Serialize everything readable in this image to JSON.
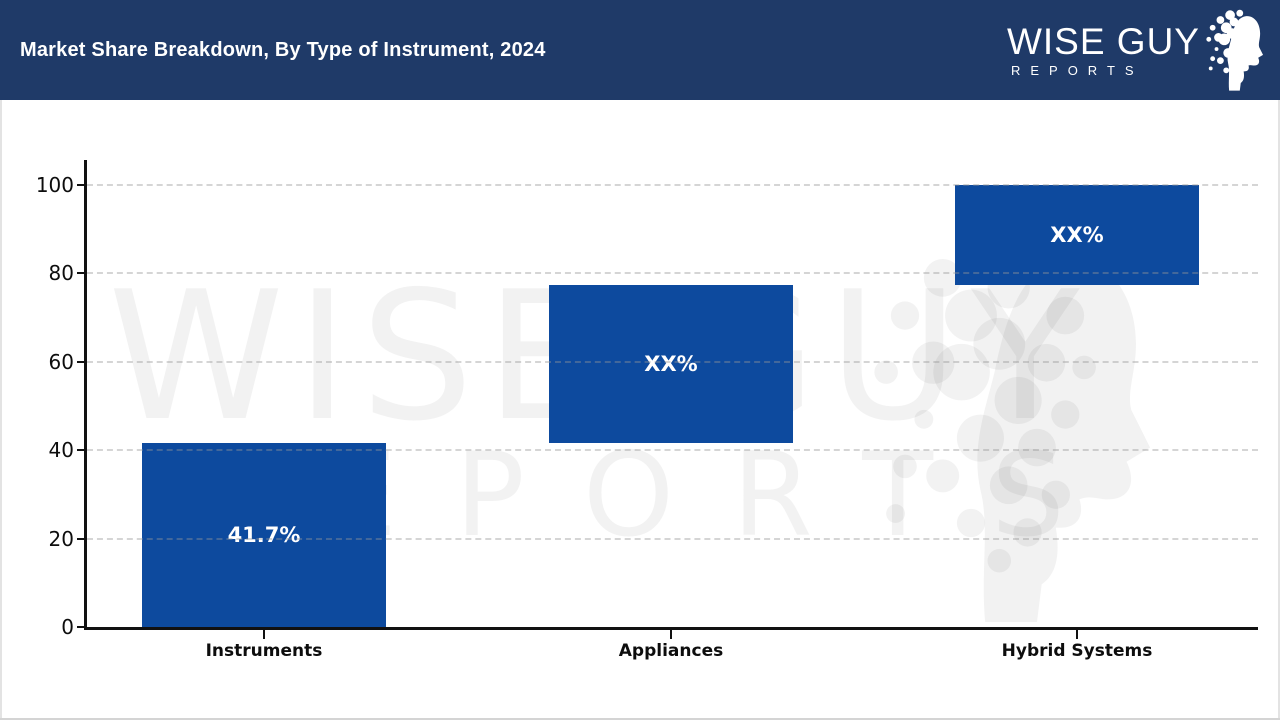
{
  "header": {
    "title": "Market Share Breakdown, By Type of Instrument, 2024",
    "logo": {
      "line1": "WISE GUY",
      "line2": "REPORTS"
    }
  },
  "watermark": {
    "line1": "WISE GUY",
    "line2": "REPORTS"
  },
  "colors": {
    "header_bg": "#1f3a68",
    "bar": "#0d4a9e",
    "bar_label": "#ffffff",
    "axis": "#111111",
    "gridline_rgba": "rgba(150,150,150,0.4)"
  },
  "chart_data": {
    "type": "bar",
    "subtype": "waterfall",
    "title": "Market Share Breakdown, By Type of Instrument, 2024",
    "categories": [
      "Instruments",
      "Appliances",
      "Hybrid Systems"
    ],
    "bars": [
      {
        "category": "Instruments",
        "start": 0,
        "end": 41.7,
        "label": "41.7%"
      },
      {
        "category": "Appliances",
        "start": 41.7,
        "end": 77.4,
        "label": "XX%"
      },
      {
        "category": "Hybrid Systems",
        "start": 77.4,
        "end": 100,
        "label": "XX%"
      }
    ],
    "yticks": [
      0,
      20,
      40,
      60,
      80,
      100
    ],
    "ylim": [
      0,
      105.7
    ],
    "xlabel": "",
    "ylabel": "",
    "grid": "horizontal-dashed",
    "legend_position": "none"
  }
}
